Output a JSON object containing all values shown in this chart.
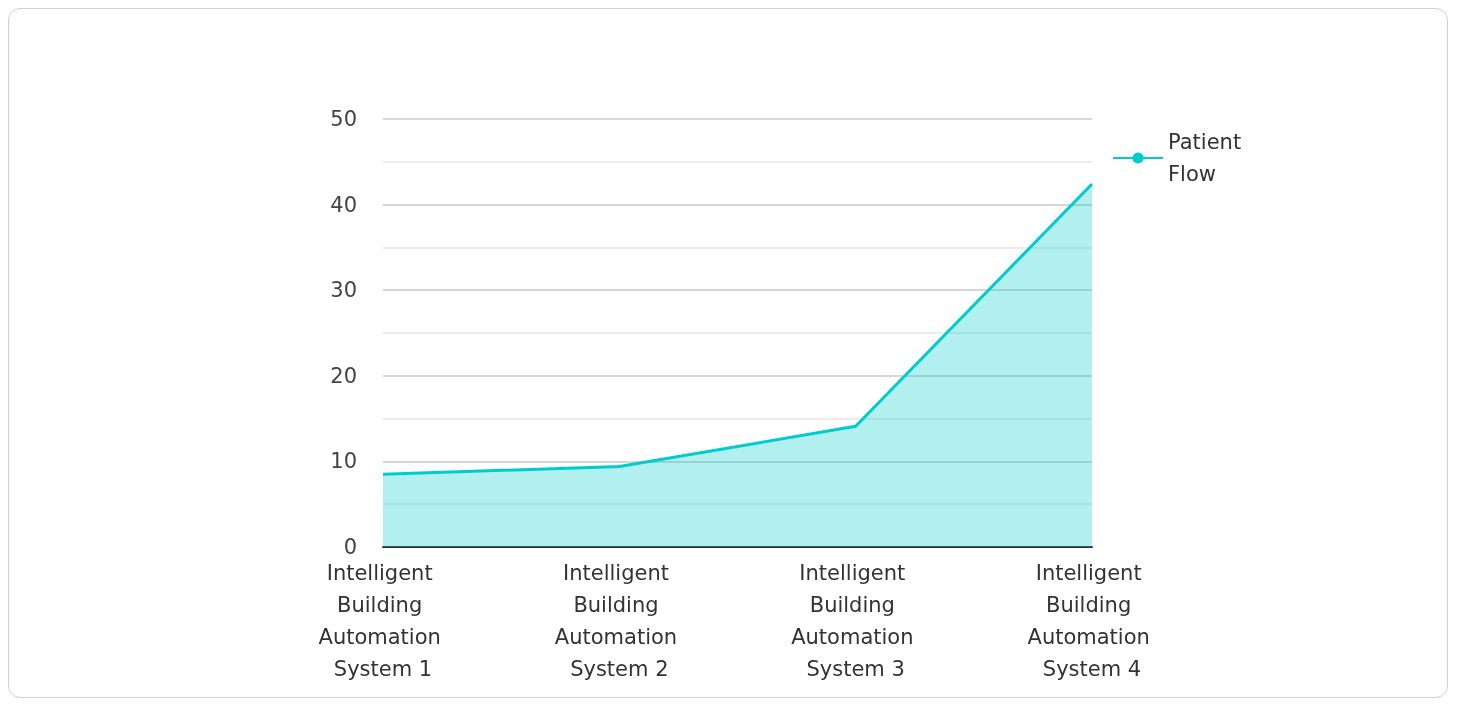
{
  "chart_data": {
    "type": "area",
    "categories": [
      "Intelligent Building Automation System 1",
      "Intelligent Building Automation System 2",
      "Intelligent Building Automation System 3",
      "Intelligent Building Automation System 4"
    ],
    "series": [
      {
        "name": "Patient Flow",
        "color": "#00cccc",
        "values": [
          8.5,
          9.4,
          14.1,
          42.4
        ]
      }
    ],
    "ylim": [
      0,
      50
    ],
    "yticks": [
      0,
      10,
      20,
      30,
      40,
      50
    ],
    "grid": "y",
    "legend": "top right",
    "marker": "none"
  }
}
